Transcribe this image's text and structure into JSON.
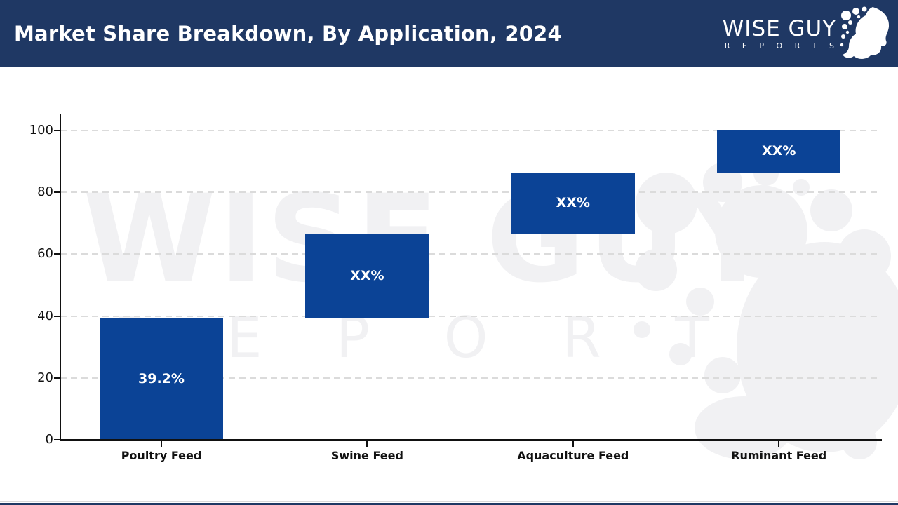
{
  "header": {
    "title": "Market Share Breakdown, By Application, 2024",
    "background_color": "#1f3864",
    "logo": {
      "line1": "WISE GUY",
      "line2": "R E P O R T S"
    }
  },
  "watermark": {
    "line1": "WISE GUY",
    "line2": "R E P O R T S"
  },
  "chart_data": {
    "type": "bar",
    "subtype": "waterfall-stacked-percentage",
    "title": "Market Share Breakdown, By Application, 2024",
    "categories": [
      "Poultry Feed",
      "Swine Feed",
      "Aquaculture Feed",
      "Ruminant Feed"
    ],
    "segments": [
      {
        "category": "Poultry Feed",
        "start": 0,
        "end": 39.2,
        "value": 39.2,
        "label": "39.2%"
      },
      {
        "category": "Swine Feed",
        "start": 39.2,
        "end": 66.6,
        "value": 27.4,
        "label": "XX%"
      },
      {
        "category": "Aquaculture Feed",
        "start": 66.6,
        "end": 86.2,
        "value": 19.6,
        "label": "XX%"
      },
      {
        "category": "Ruminant Feed",
        "start": 86.2,
        "end": 100,
        "value": 13.8,
        "label": "XX%"
      }
    ],
    "values": [
      39.2,
      27.4,
      19.6,
      13.8
    ],
    "bar_labels": [
      "39.2%",
      "XX%",
      "XX%",
      "XX%"
    ],
    "xlabel": "",
    "ylabel": "",
    "ylim": [
      0,
      100
    ],
    "yticks": [
      0,
      20,
      40,
      60,
      80,
      100
    ],
    "grid": "horizontal-dashed",
    "legend": "none",
    "bar_color": "#0b4396",
    "bar_label_color": "#ffffff",
    "axis_color": "#111111",
    "gridline_color": "#dbdbdb"
  },
  "footer": {
    "background_color": "#1f3864"
  }
}
